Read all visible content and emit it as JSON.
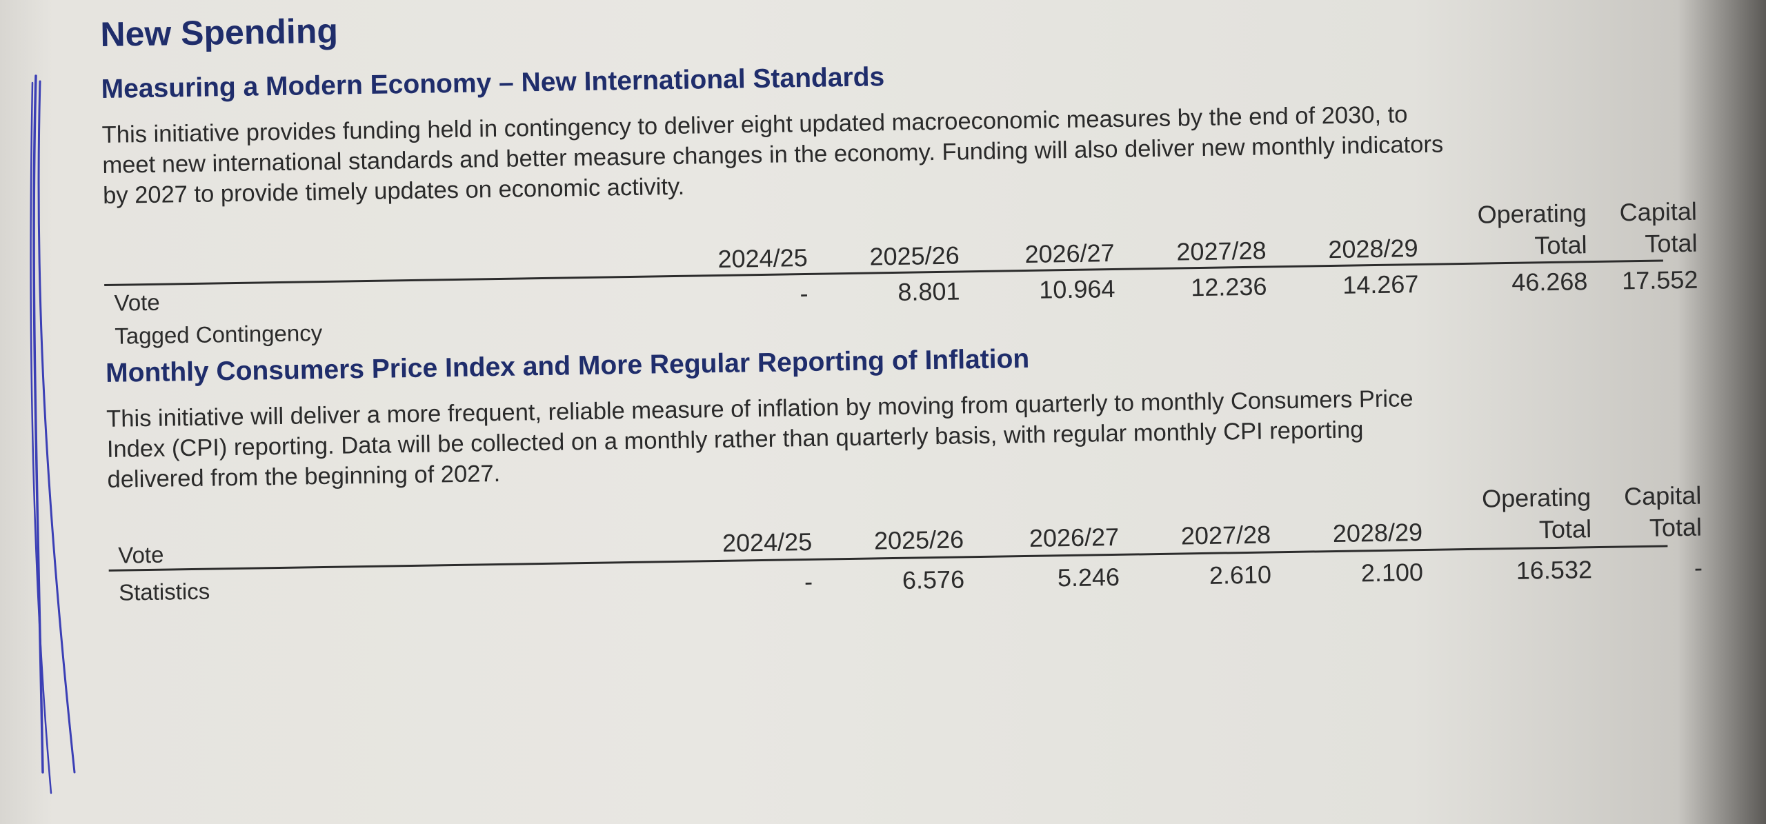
{
  "heading": "New Spending",
  "sections": [
    {
      "title": "Measuring a Modern Economy – New International Standards",
      "body_lines": [
        "This initiative provides funding held in contingency to deliver eight updated macroeconomic measures by the end of 2030, to",
        "meet new international standards and better measure changes in the economy. Funding will also deliver new monthly indicators",
        "by 2027 to provide timely updates on economic activity."
      ],
      "table": {
        "columns": [
          "2024/25",
          "2025/26",
          "2026/27",
          "2027/28",
          "2028/29"
        ],
        "operating_total_label": [
          "Operating",
          "Total"
        ],
        "capital_total_label": [
          "Capital",
          "Total"
        ],
        "row_header": "Vote",
        "row_label": "Tagged Contingency",
        "values": [
          "-",
          "8.801",
          "10.964",
          "12.236",
          "14.267",
          "46.268",
          "17.552"
        ]
      }
    },
    {
      "title": "Monthly Consumers Price Index and More Regular Reporting of Inflation",
      "body_lines": [
        "This initiative will deliver a more frequent, reliable measure of inflation by moving from quarterly to monthly Consumers Price",
        "Index (CPI) reporting. Data will be collected on a monthly rather than quarterly basis, with regular monthly CPI reporting",
        "delivered from the beginning of 2027."
      ],
      "table": {
        "columns": [
          "2024/25",
          "2025/26",
          "2026/27",
          "2027/28",
          "2028/29"
        ],
        "operating_total_label": [
          "Operating",
          "Total"
        ],
        "capital_total_label": [
          "Capital",
          "Total"
        ],
        "row_header": "Vote",
        "row_label": "Statistics",
        "values": [
          "-",
          "6.576",
          "5.246",
          "2.610",
          "2.100",
          "16.532",
          "-"
        ]
      }
    }
  ],
  "colors": {
    "heading": "#1f2d6b",
    "text": "#2a2a2a",
    "margin_pen": "#3b3fb5"
  }
}
